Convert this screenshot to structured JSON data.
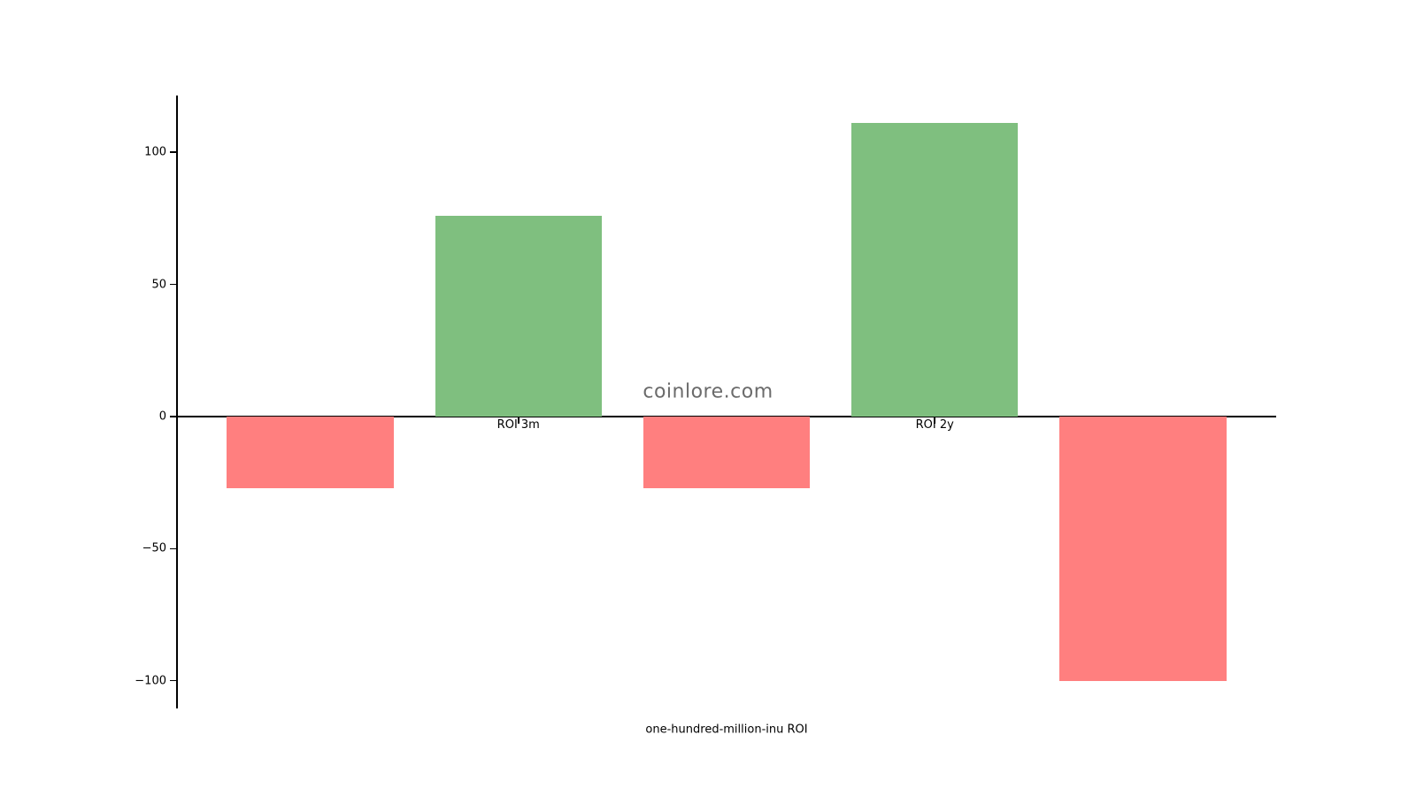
{
  "watermark": {
    "text": "coinlore.com",
    "color": "#6b6b6b"
  },
  "chart_data": {
    "type": "bar",
    "title": "",
    "xlabel": "one-hundred-million-inu ROI",
    "ylabel": "",
    "categories": [
      "",
      "ROI 3m",
      "",
      "ROI 2y",
      ""
    ],
    "values": [
      -27,
      76,
      -27,
      111,
      -100
    ],
    "bar_colors": [
      "#ff7f7f",
      "#7fbf7f",
      "#ff7f7f",
      "#7fbf7f",
      "#ff7f7f"
    ],
    "positive_color": "#7fbf7f",
    "negative_color": "#ff7f7f",
    "y_tick_values": [
      100,
      50,
      0,
      -50,
      -100
    ],
    "y_tick_labels": [
      "100",
      "50",
      "0",
      "−50",
      "−100"
    ],
    "ylim": [
      -110.5,
      121.5
    ],
    "grid": false,
    "legend_position": "none",
    "axis_color": "#000000",
    "text_color": "#000000",
    "note_on_hidden_ticks": "x tick labels at bar positions 1, 3, 5 are hidden behind the red bars; only 'ROI 3m' and 'ROI 2y' are visible"
  }
}
